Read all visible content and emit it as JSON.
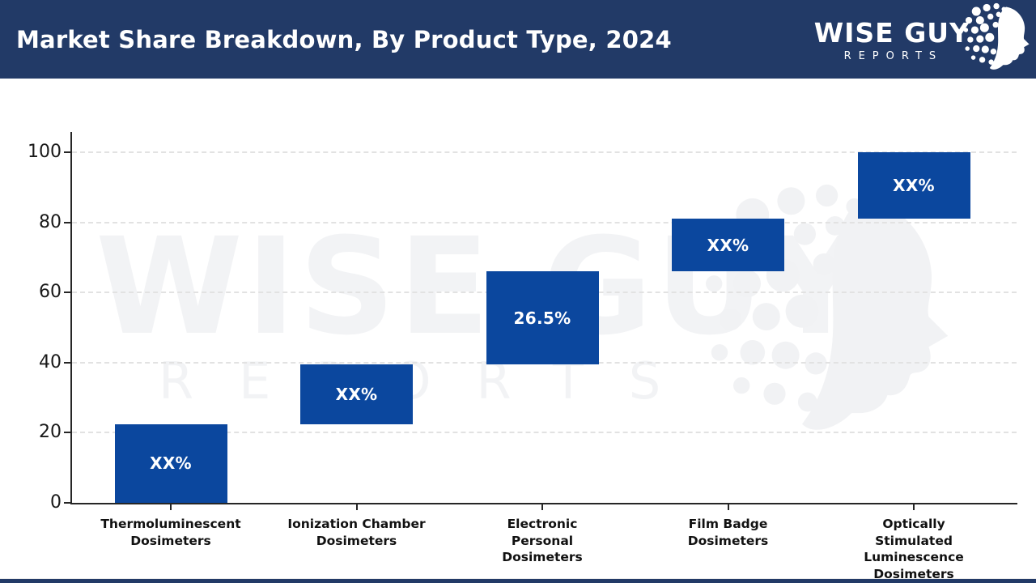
{
  "header": {
    "title": "Market Share Breakdown, By Product Type, 2024",
    "bg_color": "#223A67",
    "logo": {
      "name": "WISE GUY",
      "subname": "REPORTS",
      "face_icon": "head-profile-dots-icon"
    }
  },
  "watermark": {
    "line1": "WISE GUY",
    "line2": "REPORTS",
    "face_icon": "head-profile-dots-icon"
  },
  "chart_data": {
    "type": "bar",
    "variant": "floating-segment-waterfall",
    "title": "Market Share Breakdown, By Product Type, 2024",
    "categories": [
      "Thermoluminescent\nDosimeters",
      "Ionization Chamber\nDosimeters",
      "Electronic\nPersonal\nDosimeters",
      "Film Badge\nDosimeters",
      "Optically\nStimulated\nLuminescence\nDosimeters"
    ],
    "segments": [
      {
        "start": 0,
        "end": 22.5,
        "label": "XX%"
      },
      {
        "start": 22.5,
        "end": 39.5,
        "label": "XX%"
      },
      {
        "start": 39.5,
        "end": 66,
        "label": "26.5%"
      },
      {
        "start": 66,
        "end": 81,
        "label": "XX%"
      },
      {
        "start": 81,
        "end": 100,
        "label": "XX%"
      }
    ],
    "yticks": [
      0,
      20,
      40,
      60,
      80,
      100
    ],
    "ylim": [
      0,
      107
    ],
    "xlabel": "",
    "ylabel": "",
    "grid": "horizontal-dashed",
    "legend": "none",
    "bar_color": "#0B479E",
    "bar_label_color": "#FFFFFF",
    "axis_color": "#262626"
  }
}
